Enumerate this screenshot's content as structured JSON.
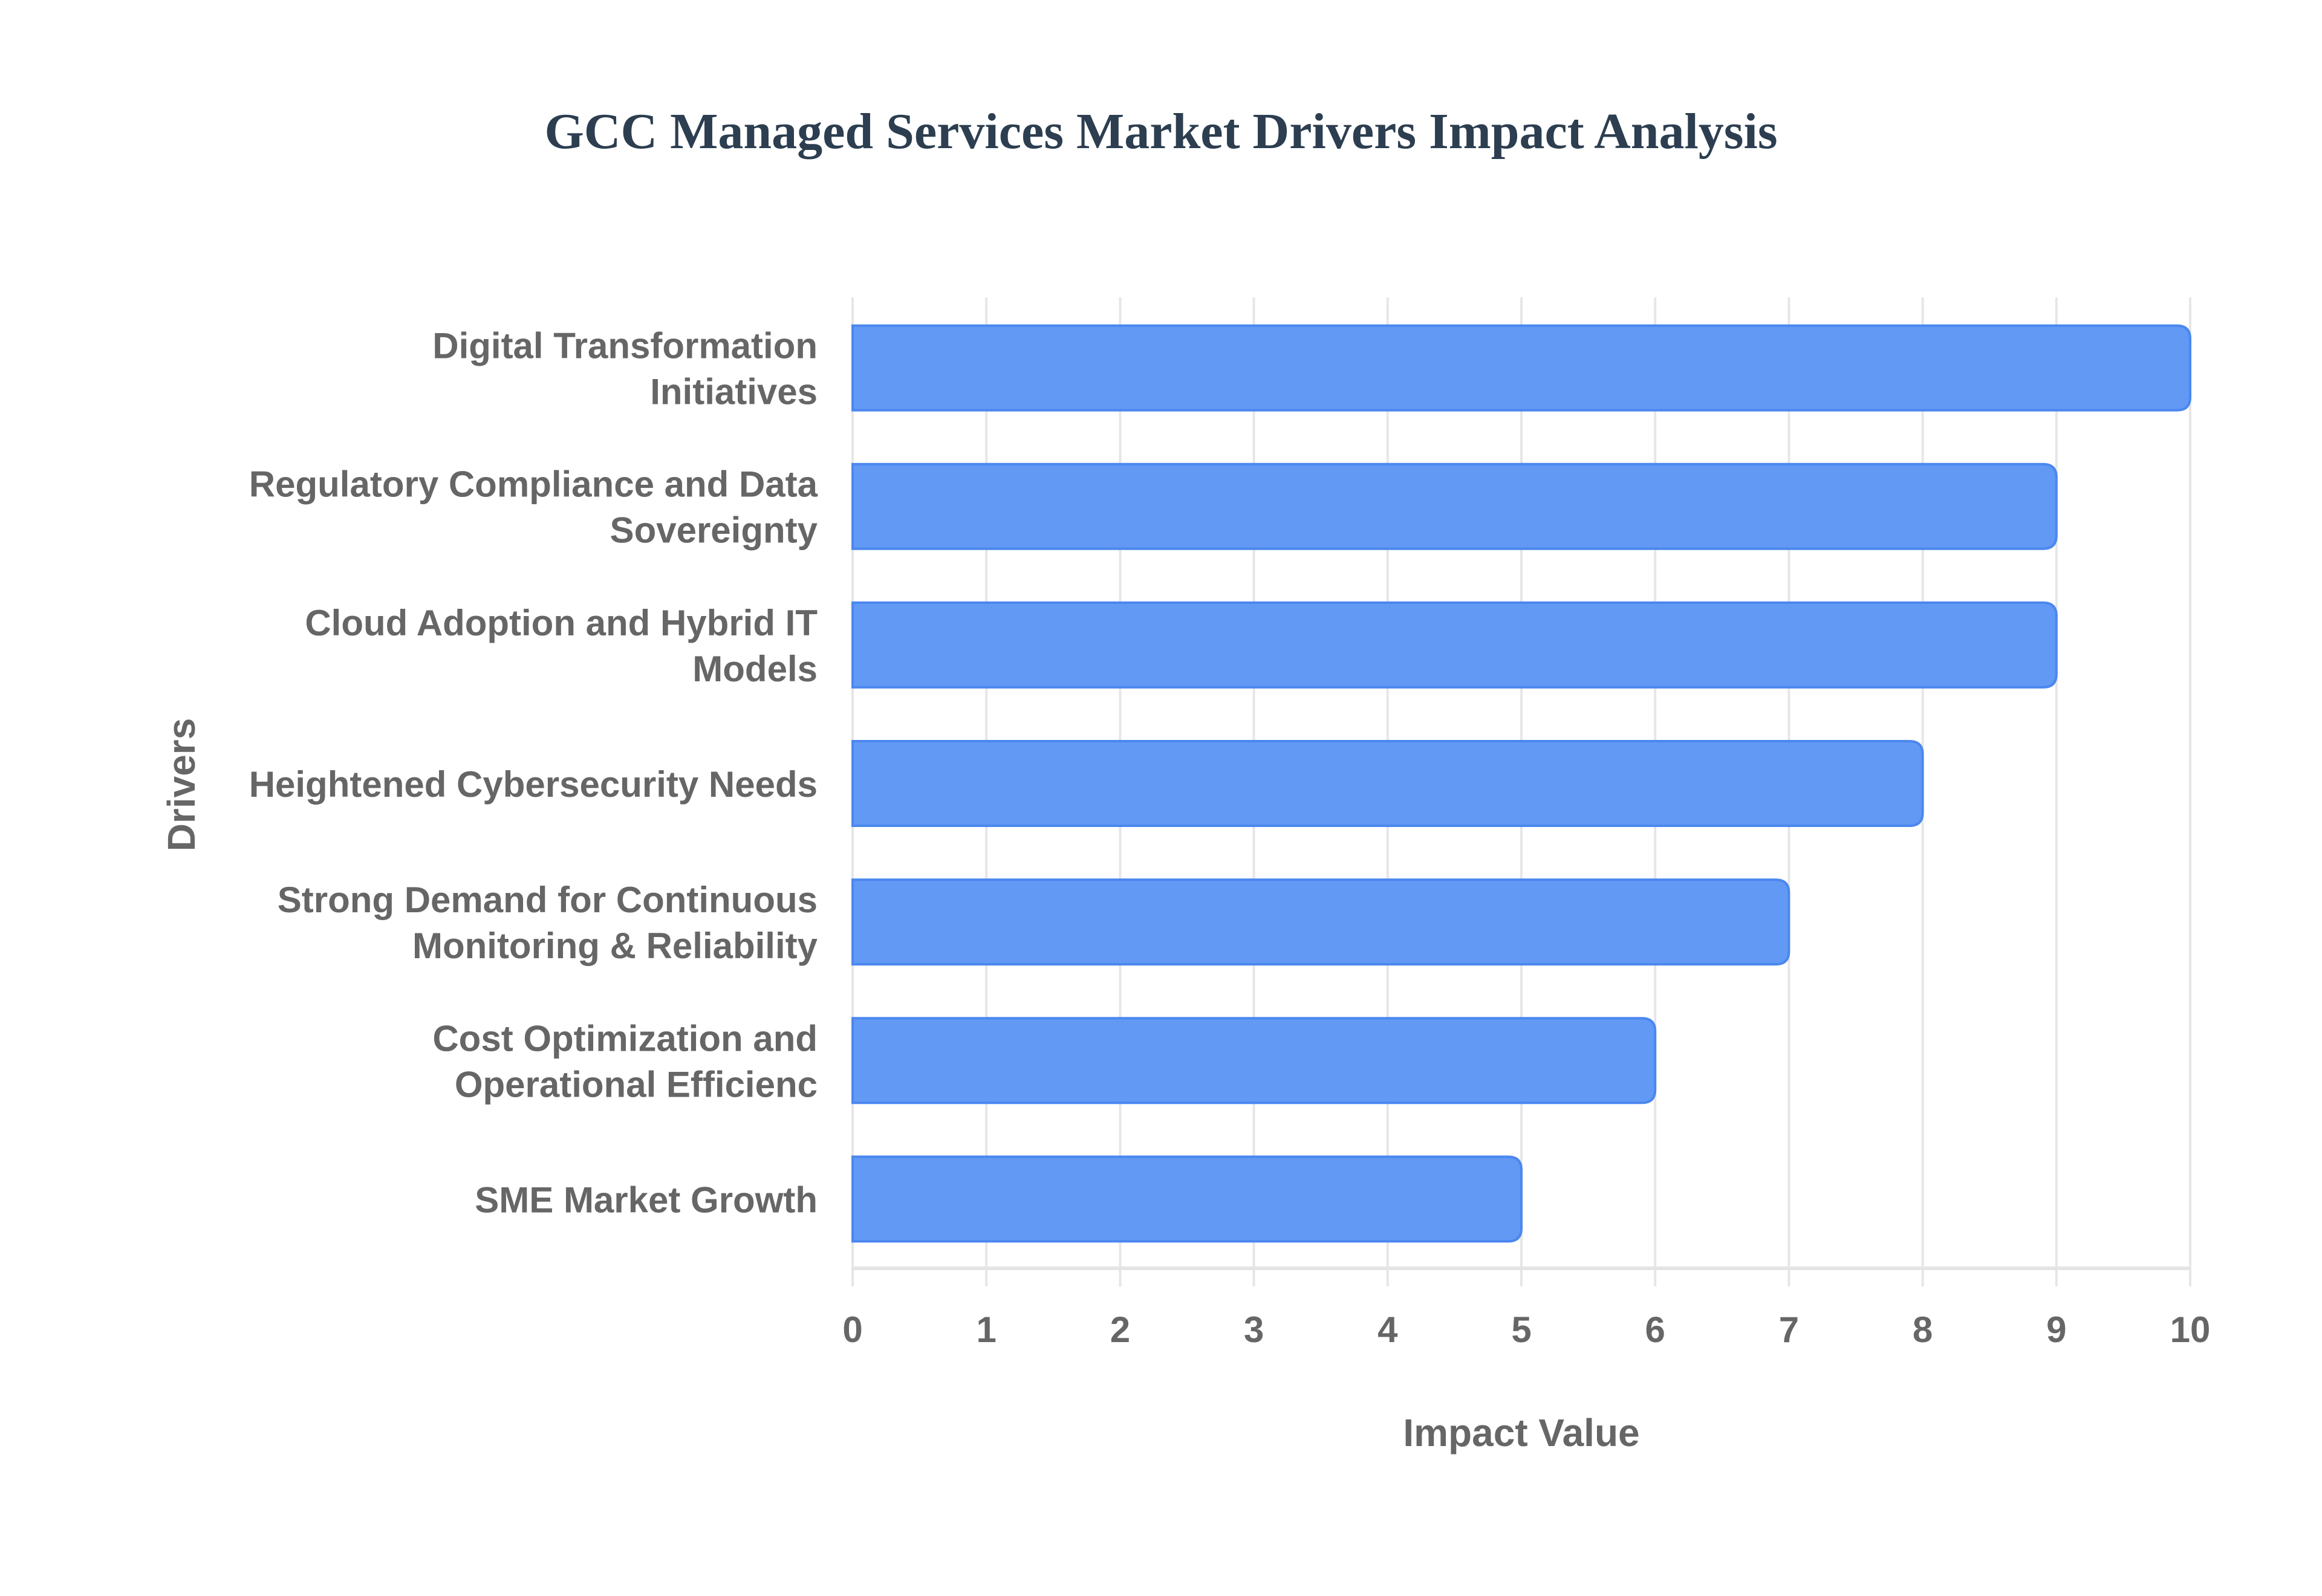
{
  "title": "GCC Managed Services Market Drivers Impact Analysis",
  "colors": {
    "title": "#2c3e50",
    "bar_fill": "#6199f4",
    "bar_border": "#4b87ef",
    "label_text": "#666666",
    "grid": "#e6e6e6"
  },
  "axes": {
    "x_title": "Impact Value",
    "y_title": "Drivers",
    "x_ticks": [
      "0",
      "1",
      "2",
      "3",
      "4",
      "5",
      "6",
      "7",
      "8",
      "9",
      "10"
    ]
  },
  "categories": [
    {
      "lines": [
        "Digital Transformation",
        "Initiatives"
      ],
      "value": 10
    },
    {
      "lines": [
        "Regulatory Compliance and Data",
        "Sovereignty"
      ],
      "value": 9
    },
    {
      "lines": [
        "Cloud Adoption and Hybrid IT",
        "Models"
      ],
      "value": 9
    },
    {
      "lines": [
        "Heightened Cybersecurity Needs"
      ],
      "value": 8
    },
    {
      "lines": [
        "Strong Demand for Continuous",
        "Monitoring & Reliability"
      ],
      "value": 7
    },
    {
      "lines": [
        "Cost Optimization and",
        "Operational Efficienc"
      ],
      "value": 6
    },
    {
      "lines": [
        "SME Market Growth"
      ],
      "value": 5
    }
  ],
  "chart_data": {
    "type": "bar",
    "orientation": "horizontal",
    "title": "GCC Managed Services Market Drivers Impact Analysis",
    "xlabel": "Impact Value",
    "ylabel": "Drivers",
    "categories": [
      "Digital Transformation Initiatives",
      "Regulatory Compliance and Data Sovereignty",
      "Cloud Adoption and Hybrid IT Models",
      "Heightened Cybersecurity Needs",
      "Strong Demand for Continuous Monitoring & Reliability",
      "Cost Optimization and Operational Efficienc",
      "SME Market Growth"
    ],
    "values": [
      10,
      9,
      9,
      8,
      7,
      6,
      5
    ],
    "xlim": [
      0,
      10
    ],
    "x_ticks": [
      0,
      1,
      2,
      3,
      4,
      5,
      6,
      7,
      8,
      9,
      10
    ],
    "grid": true,
    "legend": null,
    "bar_color": "#6199f4"
  }
}
